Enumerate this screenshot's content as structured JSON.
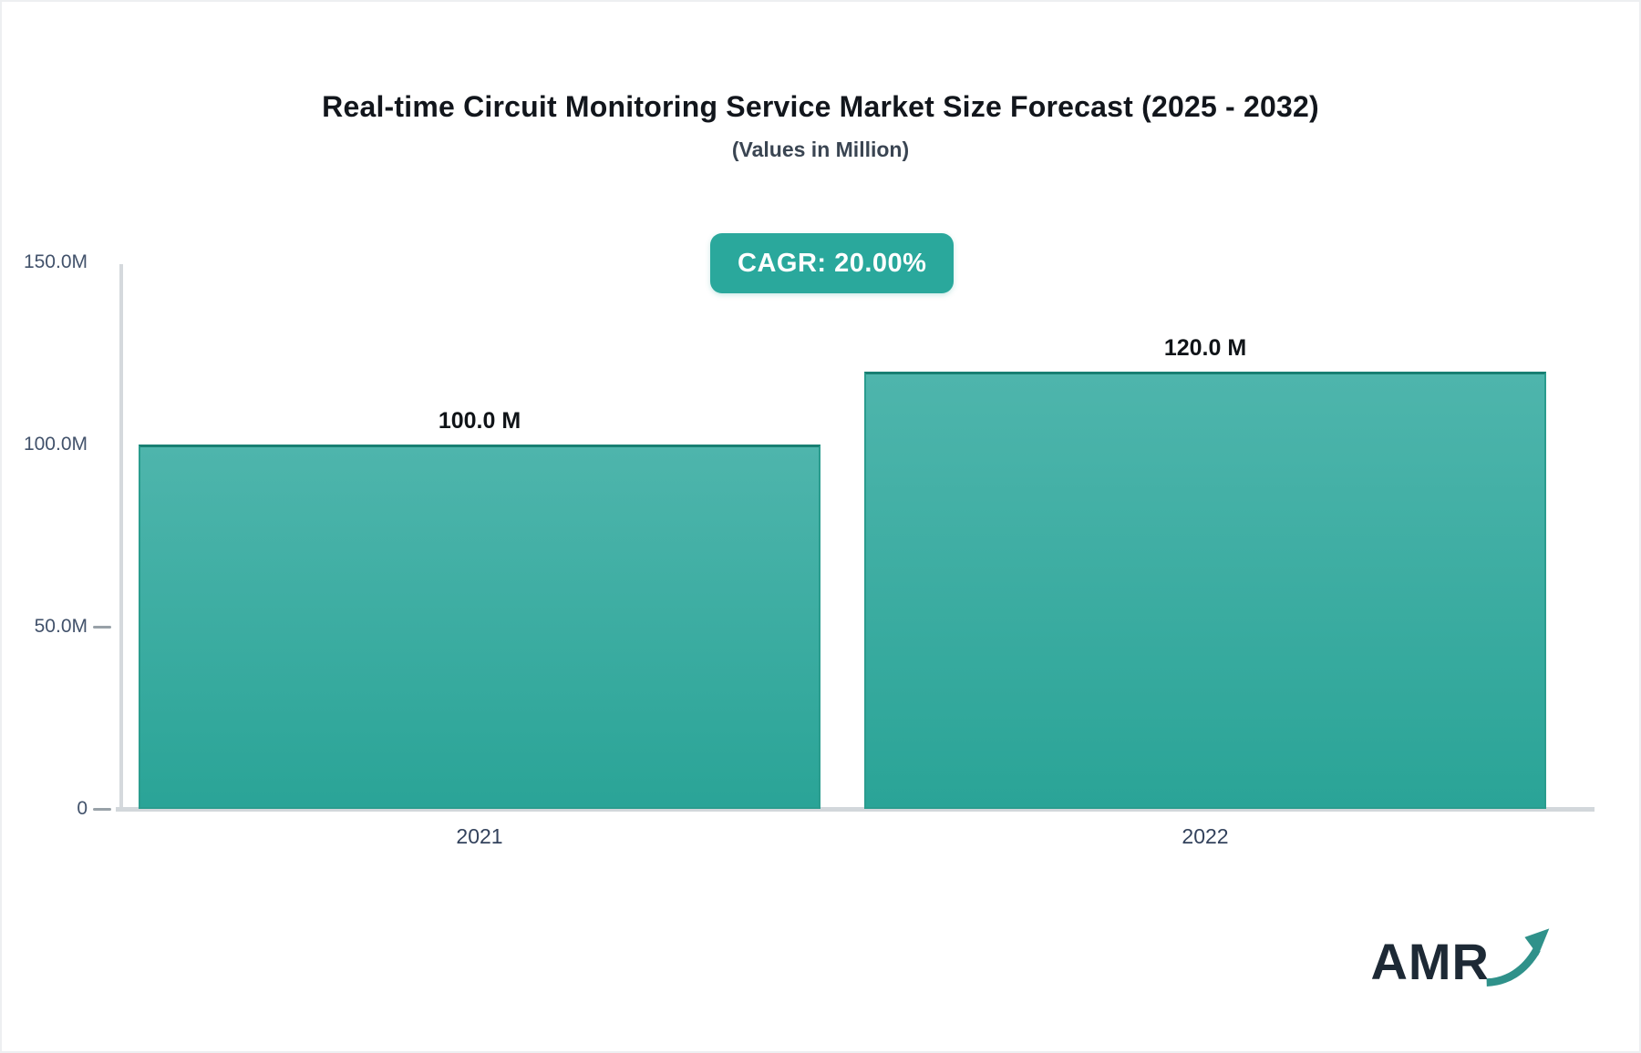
{
  "header": {
    "title": "Real-time Circuit Monitoring Service Market Size Forecast (2025 - 2032)",
    "subtitle": "(Values in Million)"
  },
  "badge": {
    "label": "CAGR: 20.00%",
    "bg_color": "#2aa89c",
    "text_color": "#ffffff"
  },
  "chart_data": {
    "type": "bar",
    "title": "Real-time Circuit Monitoring Service Market Size Forecast (2025 - 2032)",
    "subtitle": "(Values in Million)",
    "unit": "Million",
    "categories": [
      "2021",
      "2022"
    ],
    "values": [
      100.0,
      120.0
    ],
    "value_labels": [
      "100.0 M",
      "120.0 M"
    ],
    "ylim": [
      0,
      150
    ],
    "y_ticks": [
      {
        "label": "150.0M",
        "value": 150,
        "dash": false
      },
      {
        "label": "100.0M",
        "value": 100,
        "dash": false
      },
      {
        "label": "50.0M",
        "value": 50,
        "dash": true
      },
      {
        "label": "0",
        "value": 0,
        "dash": true
      }
    ],
    "grid": false,
    "legend": "none",
    "bar_colors": {
      "top": "#4eb5ac",
      "bottom": "#2aa497",
      "border": "#2a9c8e",
      "border_top": "#187f72"
    },
    "axis": {
      "line_color": "#d5d9dd",
      "tick_color": "#98a1a8",
      "y_label_color": "#42526b",
      "x_label_color": "#33425c",
      "value_label_color": "#101418"
    }
  },
  "logo": {
    "text": "AMR",
    "text_color": "#1d2935",
    "arrow_color": "#2f918a"
  }
}
